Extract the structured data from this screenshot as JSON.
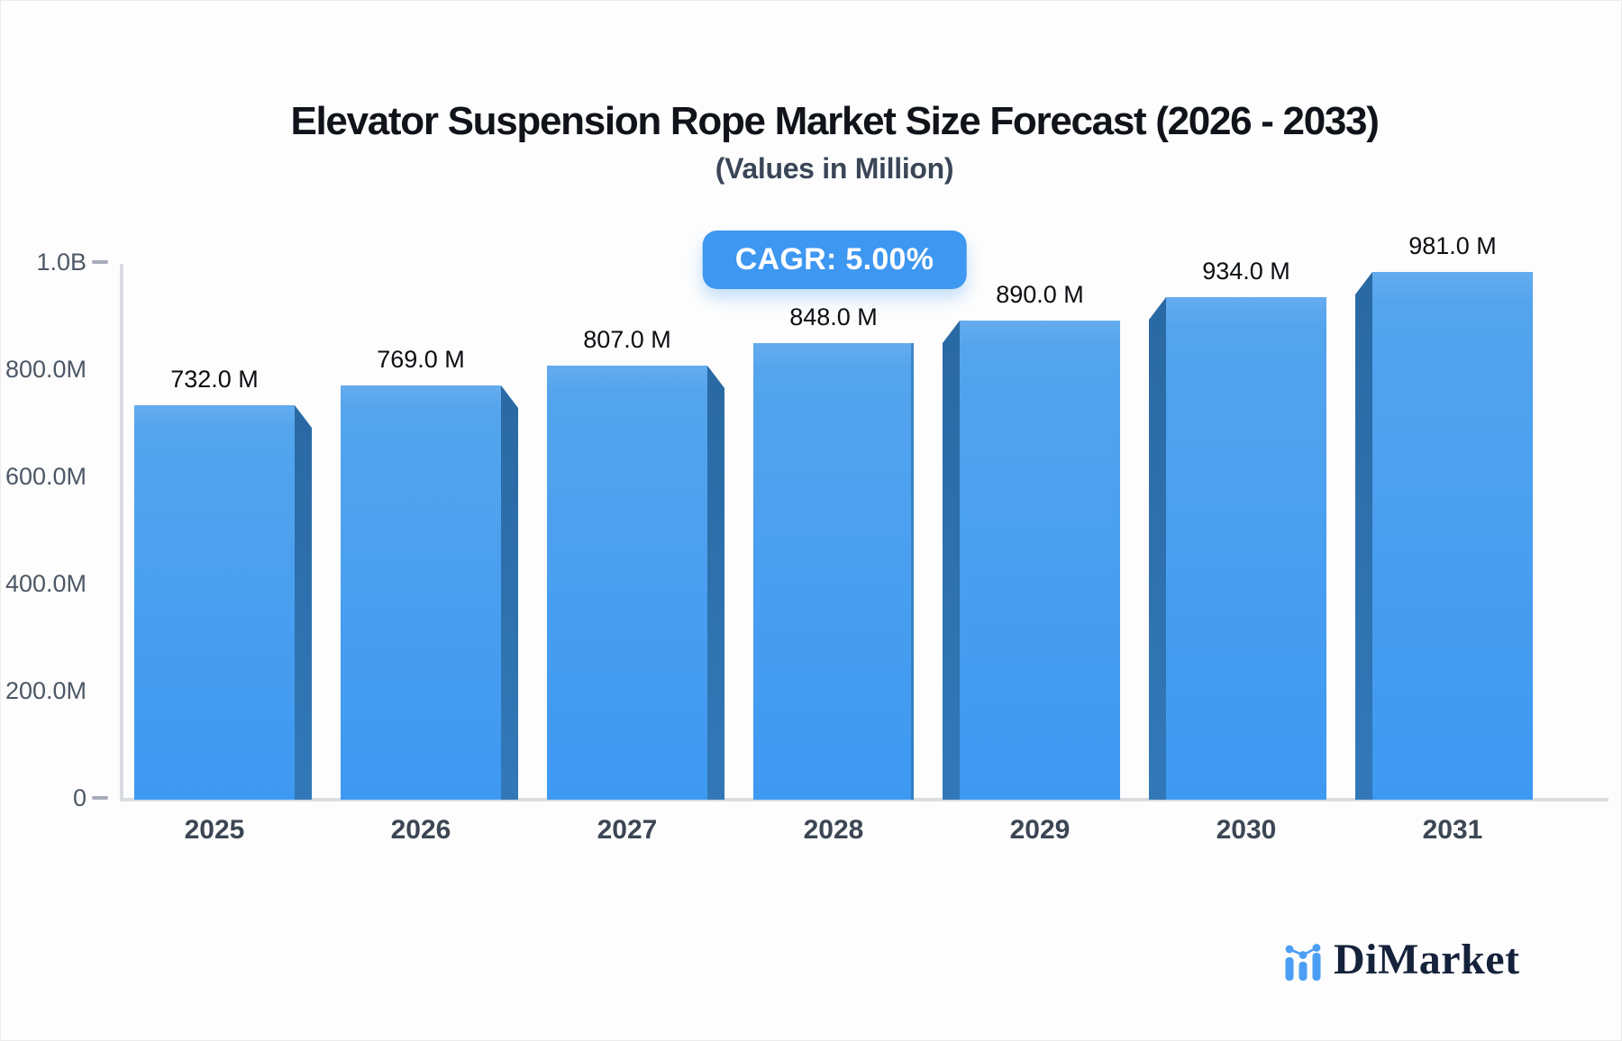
{
  "header": {
    "title": "Elevator Suspension Rope Market Size Forecast (2026 - 2033)",
    "subtitle": "(Values in Million)"
  },
  "badge": {
    "label": "CAGR: 5.00%"
  },
  "chart_data": {
    "type": "bar",
    "title": "Elevator Suspension Rope Market Size Forecast (2026 - 2033)",
    "subtitle": "(Values in Million)",
    "categories": [
      "2025",
      "2026",
      "2027",
      "2028",
      "2029",
      "2030",
      "2031"
    ],
    "values": [
      732.0,
      769.0,
      807.0,
      848.0,
      890.0,
      934.0,
      981.0
    ],
    "value_unit": "M",
    "value_labels": [
      "732.0 M",
      "769.0 M",
      "807.0 M",
      "848.0 M",
      "890.0 M",
      "934.0 M",
      "981.0 M"
    ],
    "annotation": "CAGR: 5.00%",
    "y_axis": {
      "tick_labels": [
        "1.0B",
        "800.0M",
        "600.0M",
        "400.0M",
        "200.0M",
        "0"
      ],
      "tick_values": [
        1000,
        800,
        600,
        400,
        200,
        0
      ],
      "range": [
        0,
        1000
      ]
    },
    "grid": false,
    "legend_position": "none",
    "bar_style": "3d-beveled"
  },
  "branding": {
    "name": "DiMarket",
    "icon": "bar-chart-logo-icon"
  },
  "colors": {
    "bar_face_top": "#65ACEE",
    "bar_face_bottom": "#3E99F2",
    "bar_side_top": "#2A69A3",
    "bar_side_bottom": "#3278B8",
    "badge_bg": "#3E97F0",
    "badge_text": "#FFFFFF",
    "axis_line": "#D9DCE0",
    "tick_dash": "#A6ADB8",
    "y_label_text": "#4D5866",
    "x_label_text": "#3C4654",
    "value_label_text": "#0B0E12",
    "logo_text": "#15223B",
    "logo_blue": "#4C9EF4"
  }
}
